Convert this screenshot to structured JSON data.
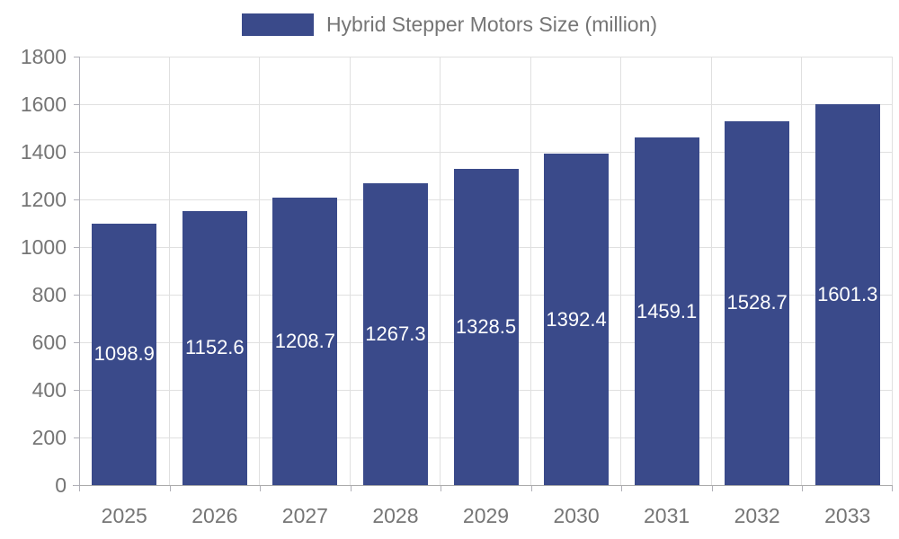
{
  "legend": {
    "items": [
      {
        "label": "Hybrid Stepper Motors Size (million)",
        "color": "#3A4A8A"
      }
    ]
  },
  "chart_data": {
    "type": "bar",
    "title": "Hybrid Stepper Motors Size (million)",
    "series_name": "Hybrid Stepper Motors Size (million)",
    "categories": [
      "2025",
      "2026",
      "2027",
      "2028",
      "2029",
      "2030",
      "2031",
      "2032",
      "2033"
    ],
    "values": [
      1098.9,
      1152.6,
      1208.7,
      1267.3,
      1328.5,
      1392.4,
      1459.1,
      1528.7,
      1601.3
    ],
    "xlabel": "",
    "ylabel": "",
    "ylim": [
      0,
      1800
    ],
    "ytick_step": 200,
    "yticks": [
      0,
      200,
      400,
      600,
      800,
      1000,
      1200,
      1400,
      1600,
      1800
    ],
    "grid": true,
    "legend_position": "top-center",
    "value_labels_inside_bars": true,
    "colors": {
      "bar": "#3A4A8A",
      "grid": "#e0e0e0",
      "axis": "#b0b0b8",
      "tick_text": "#757575",
      "value_label_text": "#ffffff",
      "background": "#ffffff"
    }
  }
}
